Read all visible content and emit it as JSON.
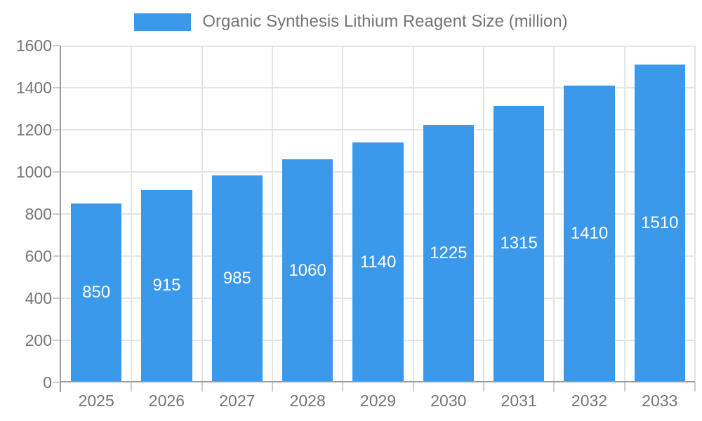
{
  "chart_data": {
    "type": "bar",
    "title": "Organic Synthesis Lithium Reagent Size (million)",
    "categories": [
      "2025",
      "2026",
      "2027",
      "2028",
      "2029",
      "2030",
      "2031",
      "2032",
      "2033"
    ],
    "values": [
      850,
      915,
      985,
      1060,
      1140,
      1225,
      1315,
      1410,
      1510
    ],
    "xlabel": "",
    "ylabel": "",
    "ylim": [
      0,
      1600
    ],
    "ytick_step": 200,
    "ytick_labels": [
      "0",
      "200",
      "400",
      "600",
      "800",
      "1000",
      "1200",
      "1400",
      "1600"
    ],
    "grid": true,
    "legend_position": "top-center",
    "bar_value_labels_shown": true,
    "colors": {
      "bar": "#3B99EC",
      "bar_label_text": "#FFFFFF",
      "axis_text": "#757575",
      "axis_line": "#999999",
      "gridline": "#E5E5E5",
      "tick": "#CCCCCC",
      "background": "#FFFFFF"
    }
  }
}
